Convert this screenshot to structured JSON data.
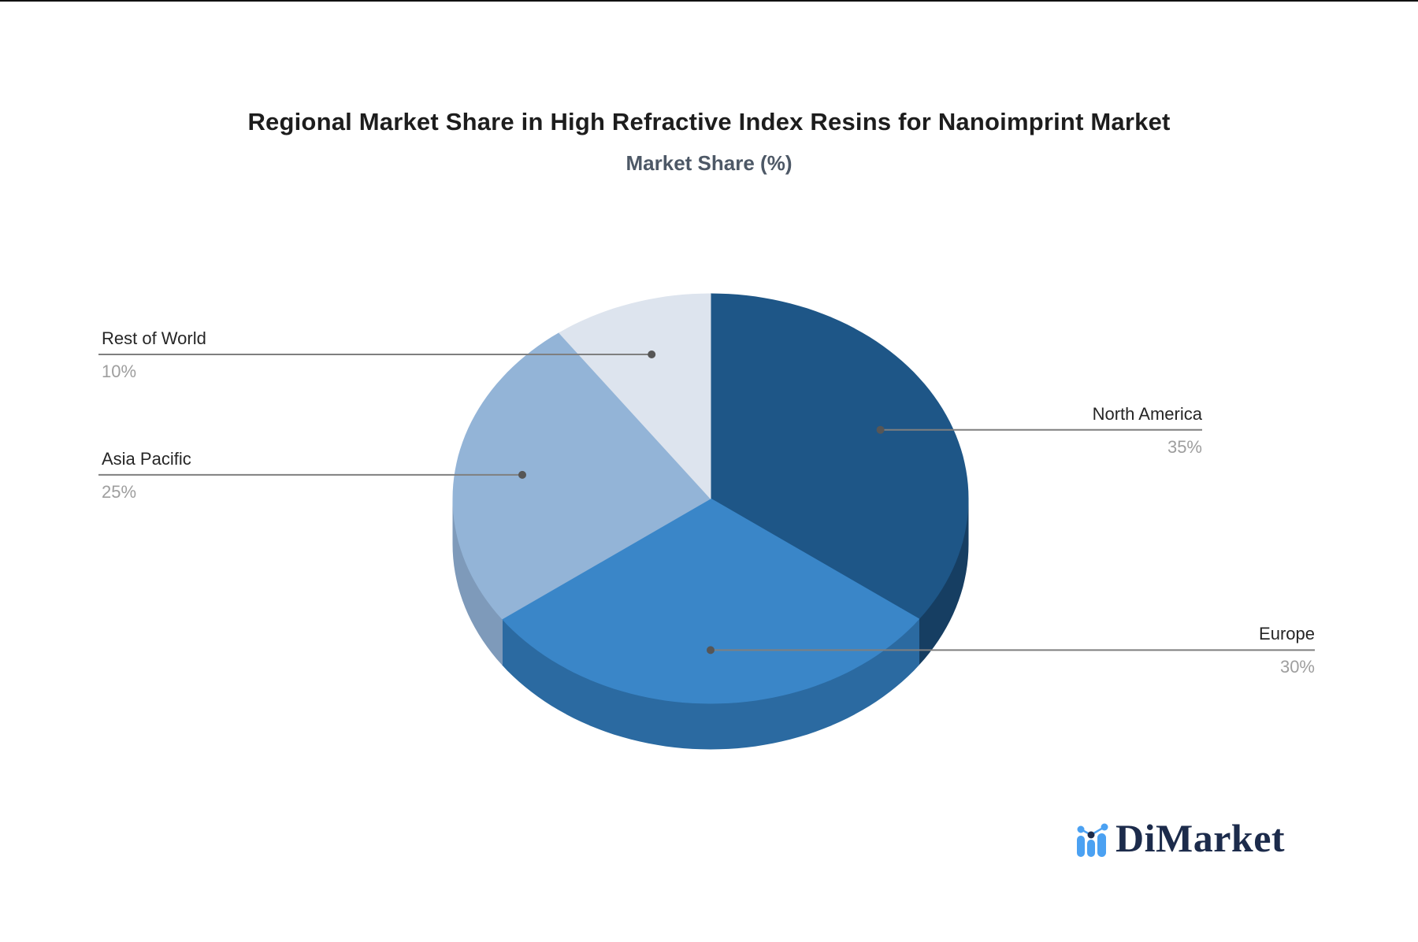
{
  "header": {
    "title": "Regional Market Share in High Refractive Index Resins for Nanoimprint Market",
    "subtitle": "Market Share (%)"
  },
  "chart_data": {
    "type": "pie",
    "three_d": true,
    "title": "Regional Market Share in High Refractive Index Resins for Nanoimprint Market",
    "subtitle": "Market Share (%)",
    "unit": "%",
    "start_angle_deg": 0,
    "direction": "clockwise",
    "legend_position": "none",
    "slices": [
      {
        "name": "North America",
        "value": 35,
        "pct_label": "35%",
        "color_top": "#1E5687",
        "color_side": "#163E62",
        "label_side": "right"
      },
      {
        "name": "Europe",
        "value": 30,
        "pct_label": "30%",
        "color_top": "#3A86C8",
        "color_side": "#2B6AA1",
        "label_side": "right"
      },
      {
        "name": "Asia Pacific",
        "value": 25,
        "pct_label": "25%",
        "color_top": "#93B4D7",
        "color_side": "#7E9ABA",
        "label_side": "left"
      },
      {
        "name": "Rest of World",
        "value": 10,
        "pct_label": "10%",
        "color_top": "#DDE4EE",
        "color_side": "#C5CFDE",
        "label_side": "left"
      }
    ],
    "labels_style": {
      "line_color": "#7f7f7f",
      "dot_color": "#565656",
      "name_color": "#262626",
      "pct_color": "#9e9e9e"
    }
  },
  "branding": {
    "logo_text": "DiMarket",
    "logo_text_color": "#1c2b4b",
    "logo_icon_color": "#4BA1F2",
    "logo_icon_dark_color": "#1C2B4B"
  }
}
